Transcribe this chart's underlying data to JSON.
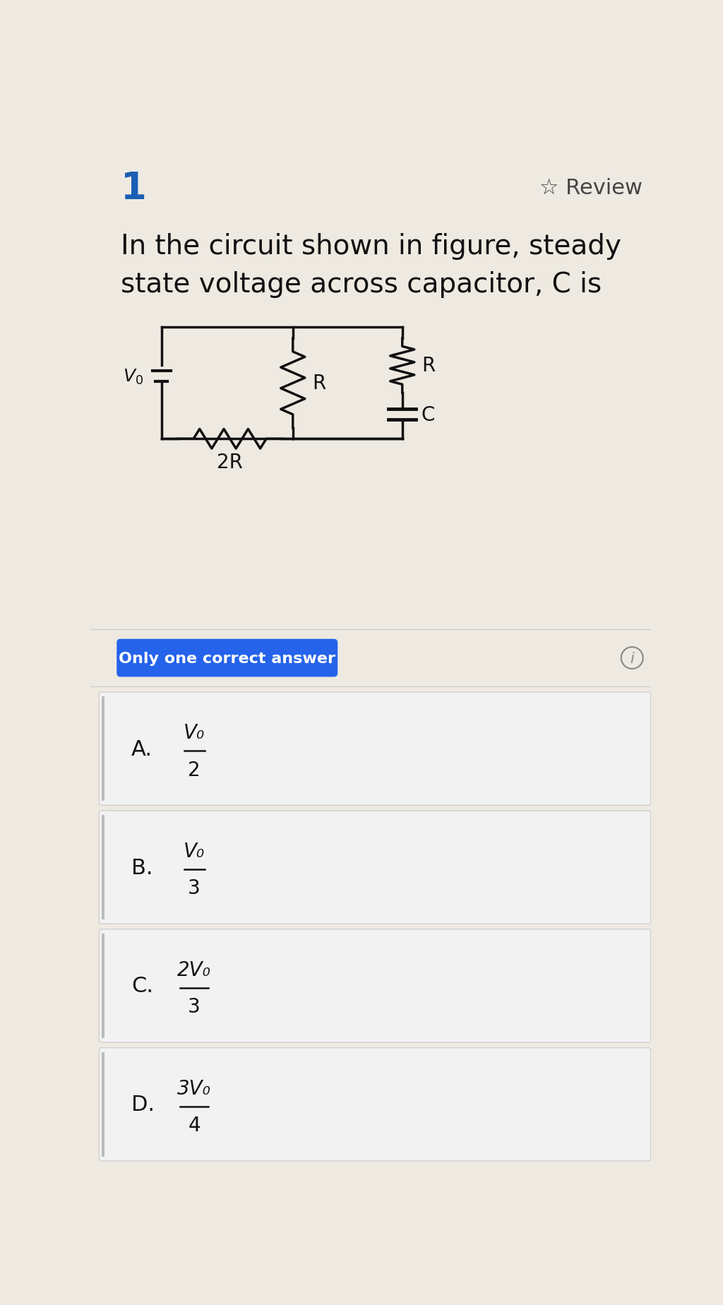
{
  "question_number": "1",
  "review_text": "☆ Review",
  "question_text_line1": "In the circuit shown in figure, steady",
  "question_text_line2": "state voltage across capacitor, C is",
  "only_one_text": "Only one correct answer",
  "options": [
    {
      "label": "A.",
      "numerator": "V₀",
      "denominator": "2"
    },
    {
      "label": "B.",
      "numerator": "V₀",
      "denominator": "3"
    },
    {
      "label": "C.",
      "numerator": "2V₀",
      "denominator": "3"
    },
    {
      "label": "D.",
      "numerator": "3V₀",
      "denominator": "4"
    }
  ],
  "bg_color": "#eeeae2",
  "option_bg_color": "#f2f2f2",
  "button_color": "#2563eb",
  "button_text_color": "#ffffff",
  "text_color": "#111111",
  "blue_color": "#1a5fb4",
  "option_border_color": "#d0d0d0",
  "divider_color": "#cccccc"
}
